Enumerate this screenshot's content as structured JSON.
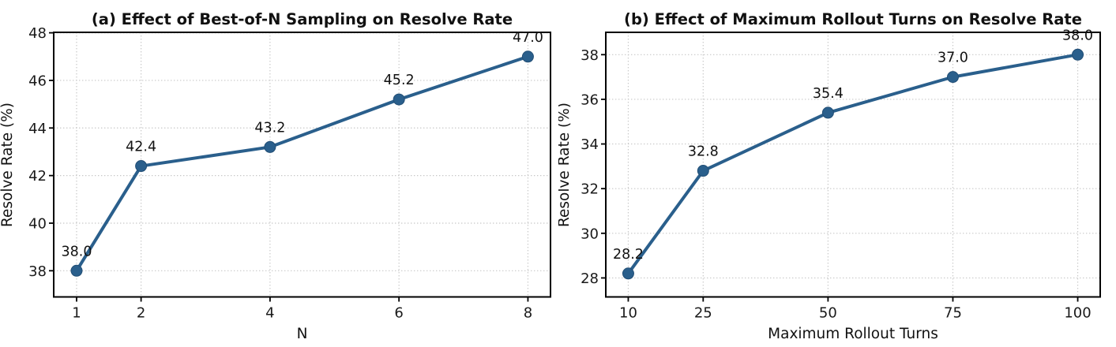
{
  "figure": {
    "background": "#ffffff",
    "accent_color": "#2a5f8c",
    "accent_dark": "#224e75",
    "grid_color": "#c7c7c7",
    "text_color": "#111111"
  },
  "chart_data": [
    {
      "type": "line",
      "title": "(a) Effect of Best-of-N Sampling on Resolve Rate",
      "xlabel": "N",
      "ylabel": "Resolve Rate (%)",
      "x": [
        1,
        2,
        4,
        6,
        8
      ],
      "values": [
        38.0,
        42.4,
        43.2,
        45.2,
        47.0
      ],
      "point_labels": [
        "38.0",
        "42.4",
        "43.2",
        "45.2",
        "47.0"
      ],
      "xticks": [
        1,
        2,
        4,
        6,
        8
      ],
      "yticks": [
        38,
        40,
        42,
        44,
        46,
        48
      ],
      "xlim": [
        0.645,
        8.35
      ],
      "ylim": [
        36.9,
        48.02
      ],
      "grid": true,
      "legend": null,
      "line_style": "solid",
      "marker": "circle"
    },
    {
      "type": "line",
      "title": "(b) Effect of Maximum Rollout Turns on Resolve Rate",
      "xlabel": "Maximum Rollout Turns",
      "ylabel": "Resolve Rate (%)",
      "x": [
        10,
        25,
        50,
        75,
        100
      ],
      "values": [
        28.2,
        32.8,
        35.4,
        37.0,
        38.0
      ],
      "point_labels": [
        "28.2",
        "32.8",
        "35.4",
        "37.0",
        "38.0"
      ],
      "xticks": [
        10,
        25,
        50,
        75,
        100
      ],
      "yticks": [
        28,
        30,
        32,
        34,
        36,
        38
      ],
      "xlim": [
        5.5,
        104.5
      ],
      "ylim": [
        27.15,
        39.0
      ],
      "grid": true,
      "legend": null,
      "line_style": "solid",
      "marker": "circle"
    }
  ]
}
